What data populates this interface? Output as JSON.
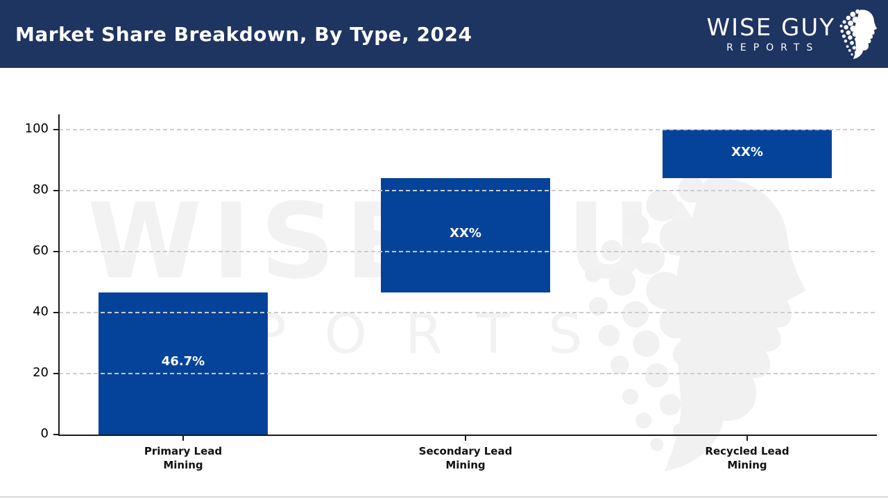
{
  "header": {
    "title": "Market Share Breakdown, By Type, 2024",
    "logo": {
      "line1": "WISE GUY",
      "line2": "REPORTS"
    }
  },
  "watermark": {
    "line1": "WISE GUY",
    "line2": "REPORTS"
  },
  "chart_data": {
    "type": "bar",
    "subtype": "waterfall-floating-bars",
    "title": "Market Share Breakdown, By Type, 2024",
    "categories": [
      [
        "Primary Lead",
        "Mining"
      ],
      [
        "Secondary Lead",
        "Mining"
      ],
      [
        "Recycled Lead",
        "Mining"
      ]
    ],
    "bars": [
      {
        "label": "46.7%",
        "start": 0,
        "end": 46.7
      },
      {
        "label": "XX%",
        "start": 46.7,
        "end": 84
      },
      {
        "label": "XX%",
        "start": 84,
        "end": 100
      }
    ],
    "xlabel": "",
    "ylabel": "",
    "ylim": [
      0,
      100
    ],
    "yticks": [
      0,
      20,
      40,
      60,
      80,
      100
    ],
    "grid": "horizontal-dashed",
    "legend": "none",
    "bar_color": "#05439b",
    "bar_label_color": "#ffffff",
    "gridline_color": "#cccccc",
    "axis_color": "#1a1a1a"
  },
  "colors": {
    "header_bg": "#1e3461",
    "page_bg": "#ffffff",
    "watermark": "#f2f2f2",
    "footer_line": "#d8d8d8"
  }
}
